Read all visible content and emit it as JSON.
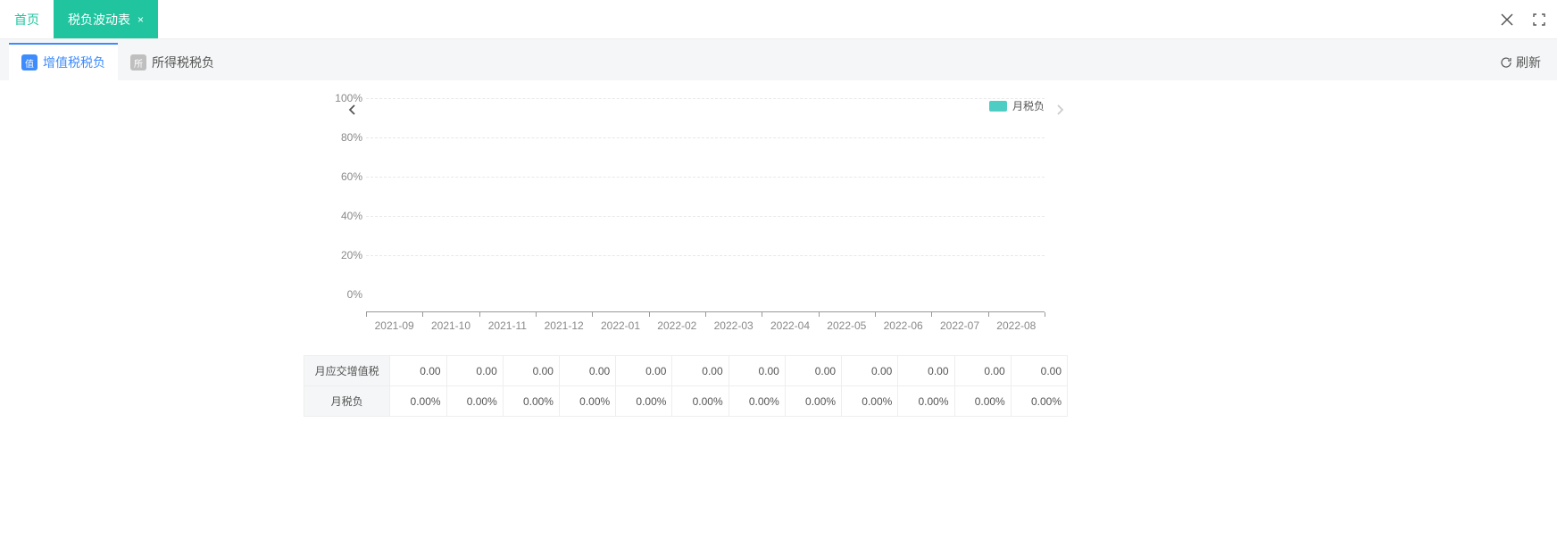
{
  "topbar": {
    "home_label": "首页",
    "active_tab_label": "税负波动表",
    "close_glyph": "×"
  },
  "subtabs": {
    "vat_label": "增值税税负",
    "income_label": "所得税税负",
    "refresh_label": "刷新"
  },
  "chart": {
    "type": "bar",
    "legend_label": "月税负",
    "legend_color": "#4ecdc4",
    "background_color": "#ffffff",
    "grid_color": "#e8e8e8",
    "axis_color": "#999999",
    "label_color": "#888888",
    "ylim": [
      0,
      100
    ],
    "ytick_step": 20,
    "y_suffix": "%",
    "yticks": [
      "0%",
      "20%",
      "40%",
      "60%",
      "80%",
      "100%"
    ],
    "categories": [
      "2021-09",
      "2021-10",
      "2021-11",
      "2021-12",
      "2022-01",
      "2022-02",
      "2022-03",
      "2022-04",
      "2022-05",
      "2022-06",
      "2022-07",
      "2022-08"
    ],
    "values": [
      0,
      0,
      0,
      0,
      0,
      0,
      0,
      0,
      0,
      0,
      0,
      0
    ]
  },
  "table": {
    "row1_header": "月应交增值税",
    "row2_header": "月税负",
    "row1_values": [
      "0.00",
      "0.00",
      "0.00",
      "0.00",
      "0.00",
      "0.00",
      "0.00",
      "0.00",
      "0.00",
      "0.00",
      "0.00",
      "0.00"
    ],
    "row2_values": [
      "0.00%",
      "0.00%",
      "0.00%",
      "0.00%",
      "0.00%",
      "0.00%",
      "0.00%",
      "0.00%",
      "0.00%",
      "0.00%",
      "0.00%",
      "0.00%"
    ]
  }
}
